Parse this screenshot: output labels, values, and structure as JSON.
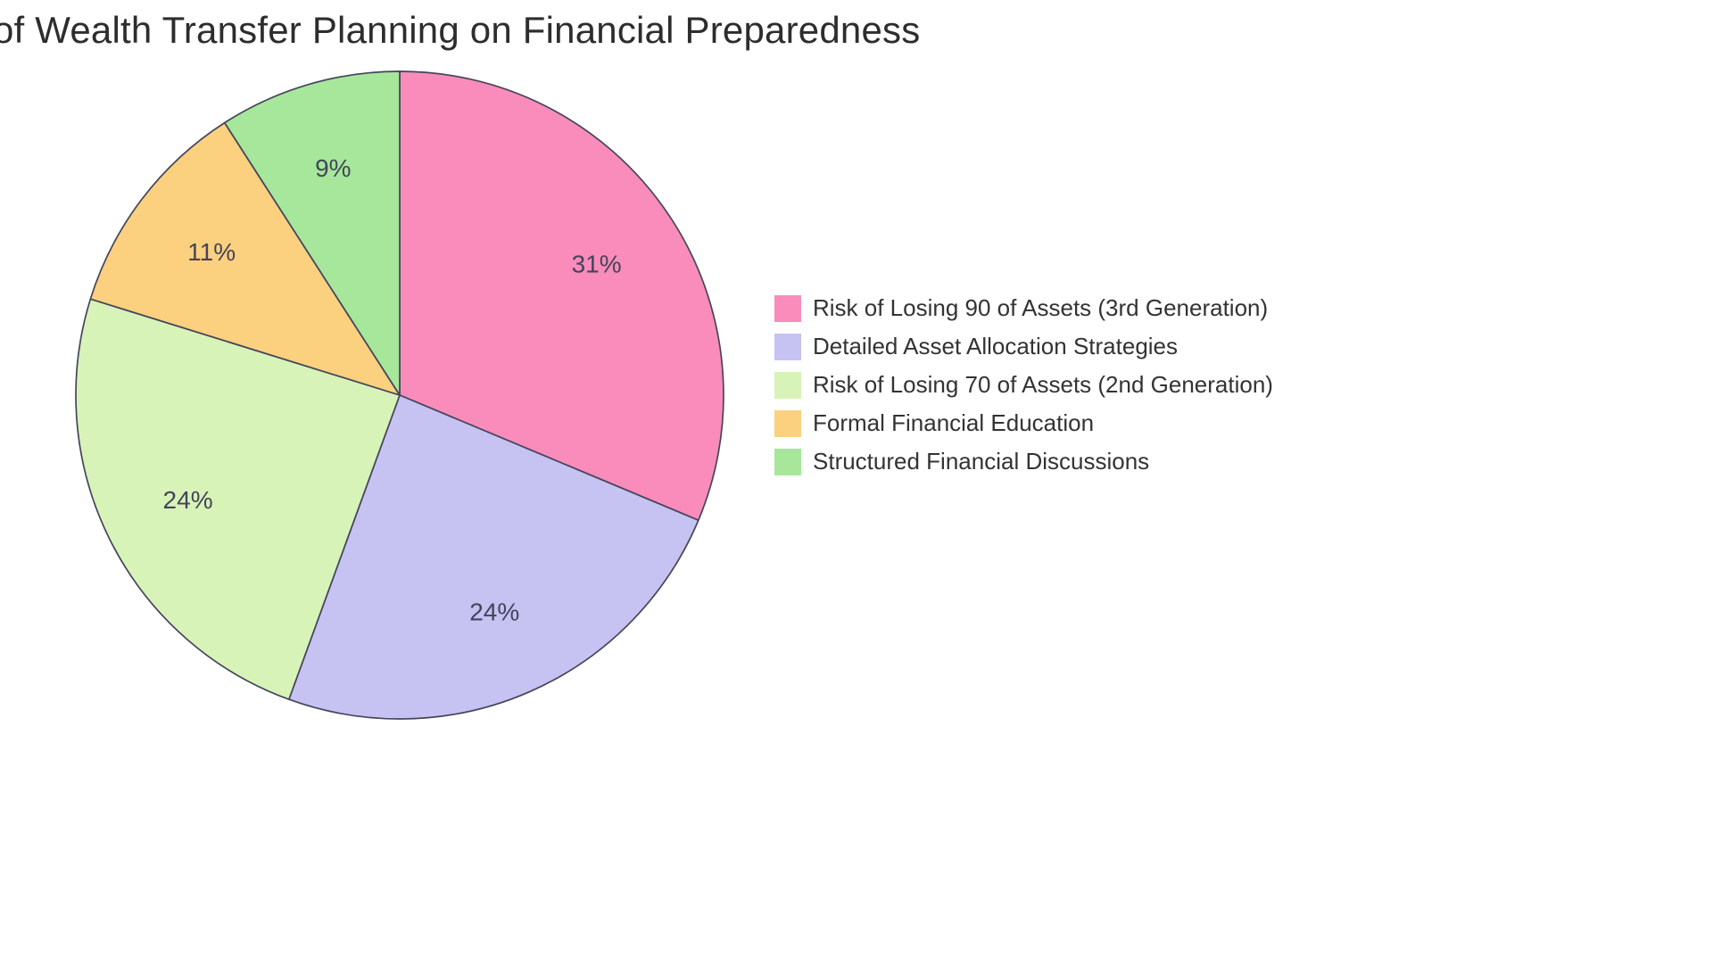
{
  "chart_data": {
    "type": "pie",
    "title": "of Wealth Transfer Planning on Financial Preparedness",
    "labels": [
      "Risk of Losing 90 of Assets (3rd Generation)",
      "Detailed Asset Allocation Strategies",
      "Risk of Losing 70 of Assets (2nd Generation)",
      "Formal Financial Education",
      "Structured Financial Discussions"
    ],
    "values": [
      31,
      24,
      24,
      11,
      9
    ],
    "percent_labels": [
      "31%",
      "24%",
      "24%",
      "11%",
      "9%"
    ],
    "colors": [
      "#F98CBA",
      "#C6C2F2",
      "#D8F3B7",
      "#FBD07F",
      "#A6E79B"
    ],
    "stroke_color": "#45455C",
    "start_angle": "top",
    "direction": "clockwise",
    "legend_position": "right",
    "background_color": "#FFFFFF"
  }
}
